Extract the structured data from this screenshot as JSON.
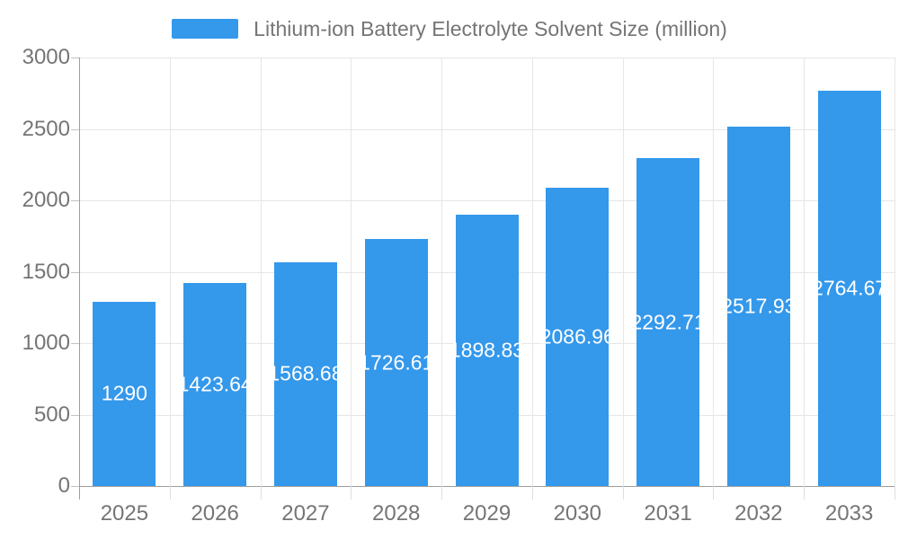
{
  "legend": {
    "label": "Lithium-ion Battery Electrolyte Solvent Size (million)",
    "swatch_color": "#3498eb"
  },
  "chart_data": {
    "type": "bar",
    "title": "Lithium-ion Battery Electrolyte Solvent Size (million)",
    "categories": [
      "2025",
      "2026",
      "2027",
      "2028",
      "2029",
      "2030",
      "2031",
      "2032",
      "2033"
    ],
    "values": [
      1290,
      1423.64,
      1568.68,
      1726.61,
      1898.83,
      2086.96,
      2292.71,
      2517.93,
      2764.67
    ],
    "value_labels": [
      "1290",
      "1423.64",
      "1568.68",
      "1726.61",
      "1898.83",
      "2086.96",
      "2292.71",
      "2517.93",
      "2764.67"
    ],
    "xlabel": "",
    "ylabel": "",
    "ylim": [
      0,
      3000
    ],
    "y_ticks": [
      0,
      500,
      1000,
      1500,
      2000,
      2500,
      3000
    ],
    "y_tick_labels": [
      "0",
      "500",
      "1000",
      "1500",
      "2000",
      "2500",
      "3000"
    ],
    "grid": true,
    "legend_position": "top",
    "label_position": "inside-middle",
    "colors": {
      "bar": "#3498eb",
      "bar_label": "#ffffff",
      "axis_text": "#757575",
      "axis_line": "#9e9e9e",
      "gridline": "#e6e6e6"
    }
  }
}
